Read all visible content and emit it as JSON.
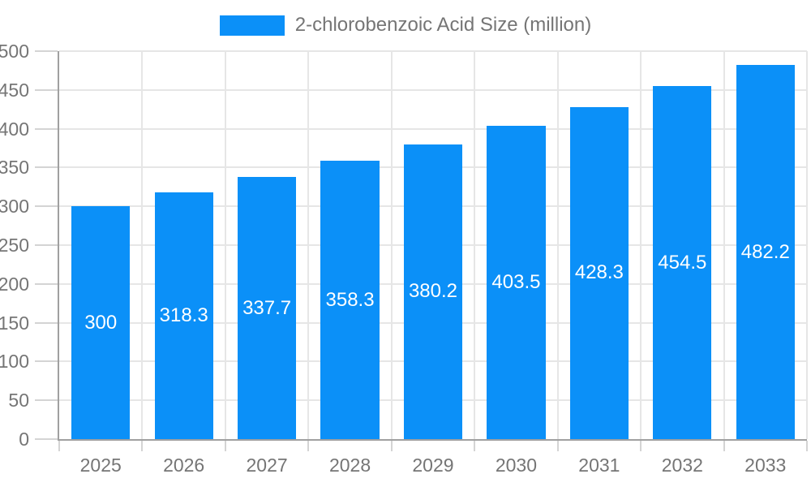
{
  "chart_data": {
    "type": "bar",
    "title": "",
    "legend_label": "2-chlorobenzoic Acid Size (million)",
    "legend_position": "top",
    "categories": [
      "2025",
      "2026",
      "2027",
      "2028",
      "2029",
      "2030",
      "2031",
      "2032",
      "2033"
    ],
    "series": [
      {
        "name": "2-chlorobenzoic Acid Size (million)",
        "values": [
          300,
          318.3,
          337.7,
          358.3,
          380.2,
          403.5,
          428.3,
          454.5,
          482.2
        ],
        "labels": [
          "300",
          "318.3",
          "337.7",
          "358.3",
          "380.2",
          "403.5",
          "428.3",
          "454.5",
          "482.2"
        ]
      }
    ],
    "xlabel": "",
    "ylabel": "",
    "ylim": [
      0,
      500
    ],
    "yticks": [
      0,
      50,
      100,
      150,
      200,
      250,
      300,
      350,
      400,
      450,
      500
    ],
    "ytick_labels": [
      "0",
      "50",
      "100",
      "150",
      "200",
      "250",
      "300",
      "350",
      "400",
      "450",
      "500"
    ],
    "grid": true,
    "colors": {
      "bar": "#0b90f8",
      "axis": "#a0a0a0",
      "gridline": "#e6e6e6",
      "tick": "#d4d4d4",
      "axis_label": "#757575",
      "bar_label": "#ffffff",
      "background": "#ffffff"
    }
  }
}
